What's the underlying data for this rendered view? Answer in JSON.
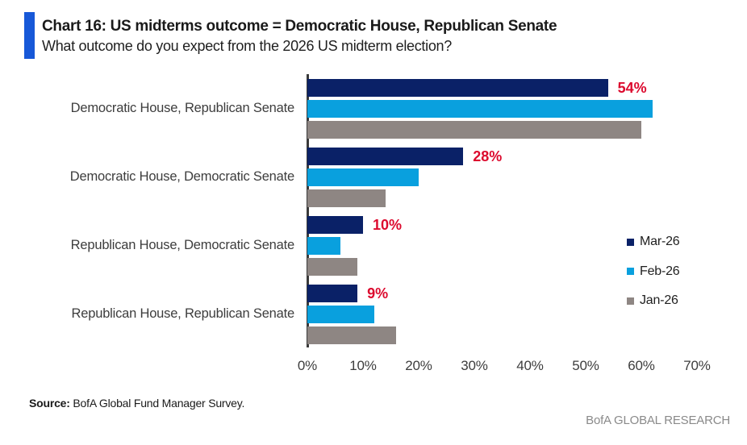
{
  "header": {
    "title": "Chart 16: US midterms outcome = Democratic House, Republican Senate",
    "subtitle": "What outcome do you expect from the 2026 US midterm election?"
  },
  "colors": {
    "accent_bar": "#1758d8",
    "navy": "#0a2167",
    "light_blue": "#09a0de",
    "gray": "#8e8683",
    "label_red": "#dc0a2e"
  },
  "chart_data": {
    "type": "bar",
    "orientation": "horizontal",
    "title": "Chart 16: US midterms outcome = Democratic House, Republican Senate",
    "subtitle": "What outcome do you expect from the 2026 US midterm election?",
    "categories": [
      "Democratic House, Republican Senate",
      "Democratic House, Democratic Senate",
      "Republican House, Democratic Senate",
      "Republican House, Republican Senate"
    ],
    "series": [
      {
        "name": "Mar-26",
        "color": "#0a2167",
        "values": [
          54,
          28,
          10,
          9
        ]
      },
      {
        "name": "Feb-26",
        "color": "#09a0de",
        "values": [
          62,
          20,
          6,
          12
        ]
      },
      {
        "name": "Jan-26",
        "color": "#8e8683",
        "values": [
          60,
          14,
          9,
          16
        ]
      }
    ],
    "data_labels": {
      "on_series": "Mar-26",
      "values": [
        "54%",
        "28%",
        "10%",
        "9%"
      ],
      "color": "#dc0a2e"
    },
    "xlim": [
      0,
      70
    ],
    "x_ticks": [
      "0%",
      "10%",
      "20%",
      "30%",
      "40%",
      "50%",
      "60%",
      "70%"
    ],
    "grid": false,
    "legend_position": "right"
  },
  "footer": {
    "source_label": "Source:",
    "source_text": " BofA Global Fund Manager Survey.",
    "brand": "BofA GLOBAL RESEARCH"
  }
}
